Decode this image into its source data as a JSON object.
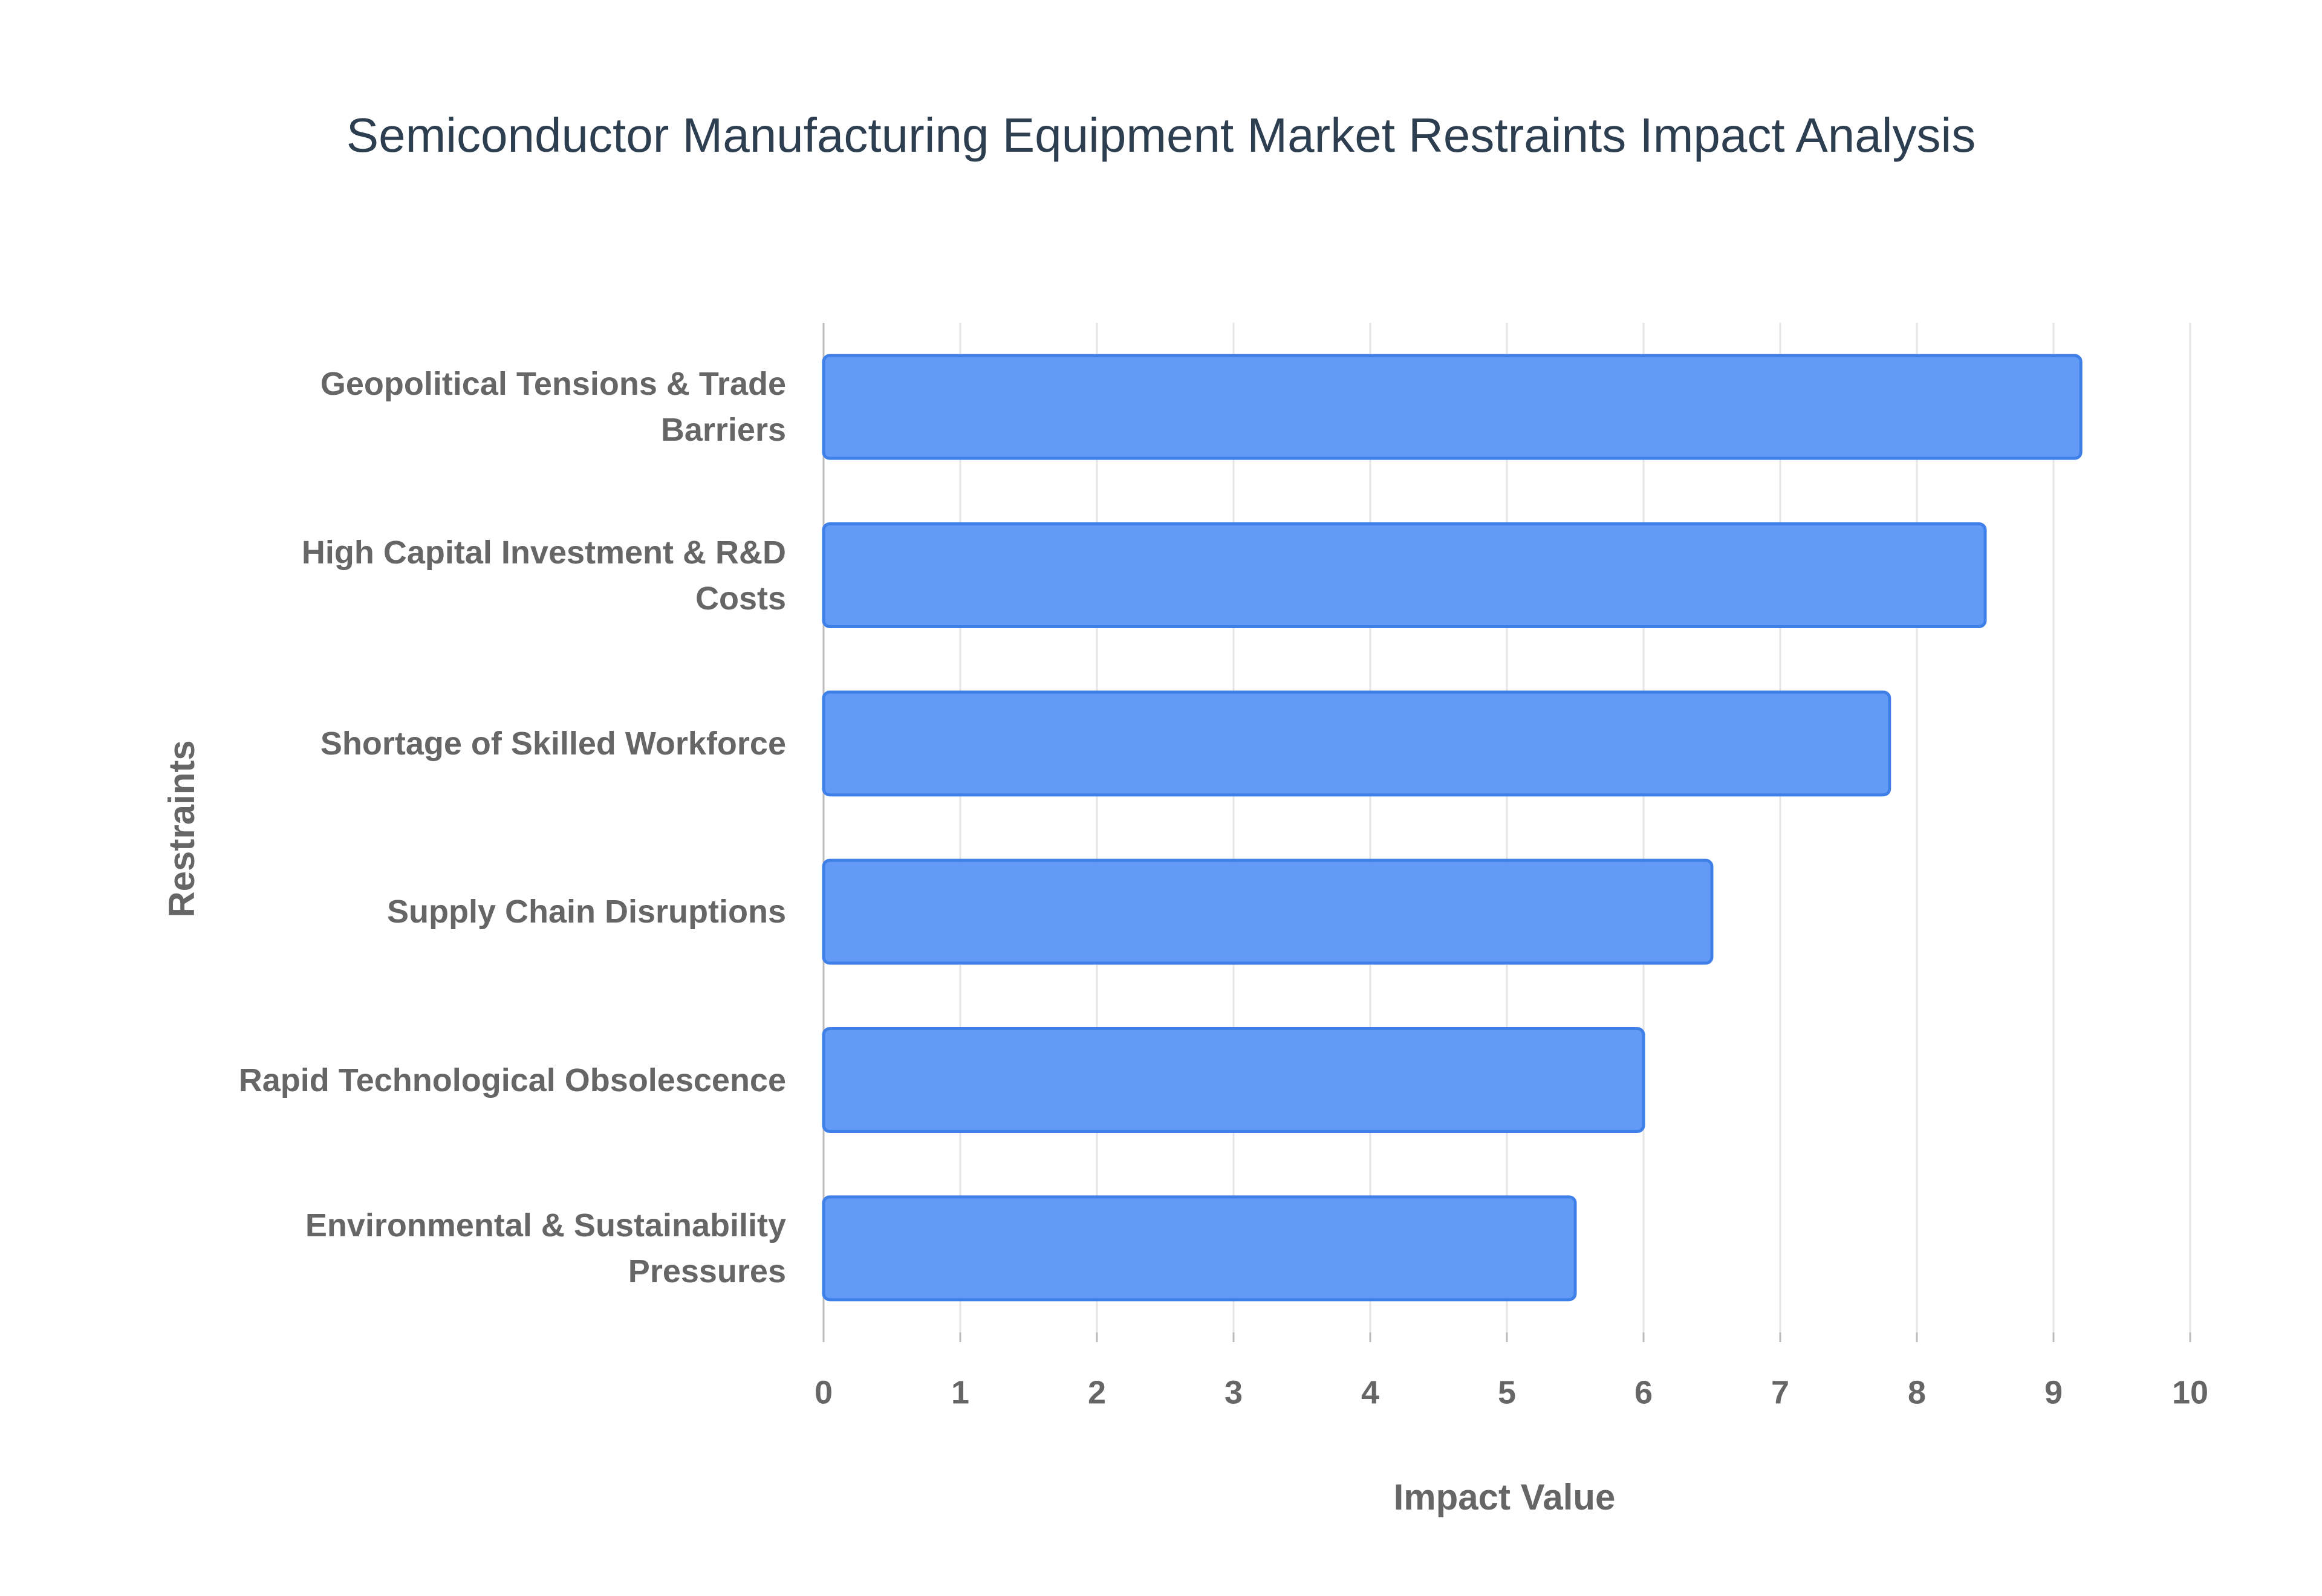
{
  "chart_data": {
    "type": "bar",
    "orientation": "horizontal",
    "title": "Semiconductor Manufacturing Equipment Market Restraints Impact Analysis",
    "x_label": "Impact Value",
    "y_label": "Restraints",
    "categories": [
      "Geopolitical Tensions & Trade Barriers",
      "High Capital Investment & R&D Costs",
      "Shortage of Skilled Workforce",
      "Supply Chain Disruptions",
      "Rapid Technological Obsolescence",
      "Environmental & Sustainability Pressures"
    ],
    "values": [
      9.2,
      8.5,
      7.8,
      6.5,
      6.0,
      5.5
    ],
    "color": "#5b95f5",
    "xlim": [
      0,
      10
    ],
    "xticks": [
      0,
      1,
      2,
      3,
      4,
      5,
      6,
      7,
      8,
      9,
      10
    ],
    "grid": true
  }
}
